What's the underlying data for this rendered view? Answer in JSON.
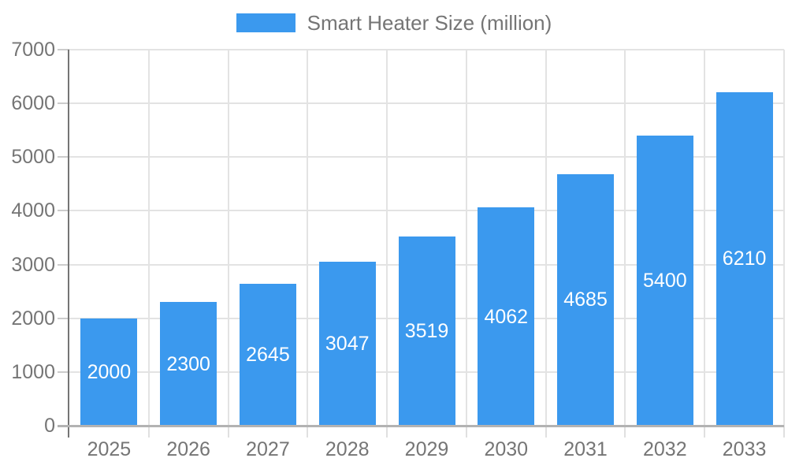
{
  "chart_data": {
    "type": "bar",
    "title": "Smart Heater Size (million)",
    "legend_position": "top",
    "categories": [
      "2025",
      "2026",
      "2027",
      "2028",
      "2029",
      "2030",
      "2031",
      "2032",
      "2033"
    ],
    "series": [
      {
        "name": "Smart Heater Size (million)",
        "values": [
          2000,
          2300,
          2645,
          3047,
          3519,
          4062,
          4685,
          5400,
          6210
        ]
      }
    ],
    "value_labels_shown": true,
    "xlabel": "",
    "ylabel": "",
    "ylim": [
      0,
      7000
    ],
    "yticks": [
      0,
      1000,
      2000,
      3000,
      4000,
      5000,
      6000,
      7000
    ],
    "grid": "on",
    "colors": {
      "bar": "#3B99EE",
      "value_label": "#FFFFFF",
      "axis_text": "#757575",
      "gridline": "#E3E3E3",
      "y_axis_line": "#757575",
      "x_axis_line": "#B3B3B3",
      "y_tick": "#CCCCCC",
      "x_tick": "#E0E0E0",
      "background": "#FFFFFF"
    }
  }
}
